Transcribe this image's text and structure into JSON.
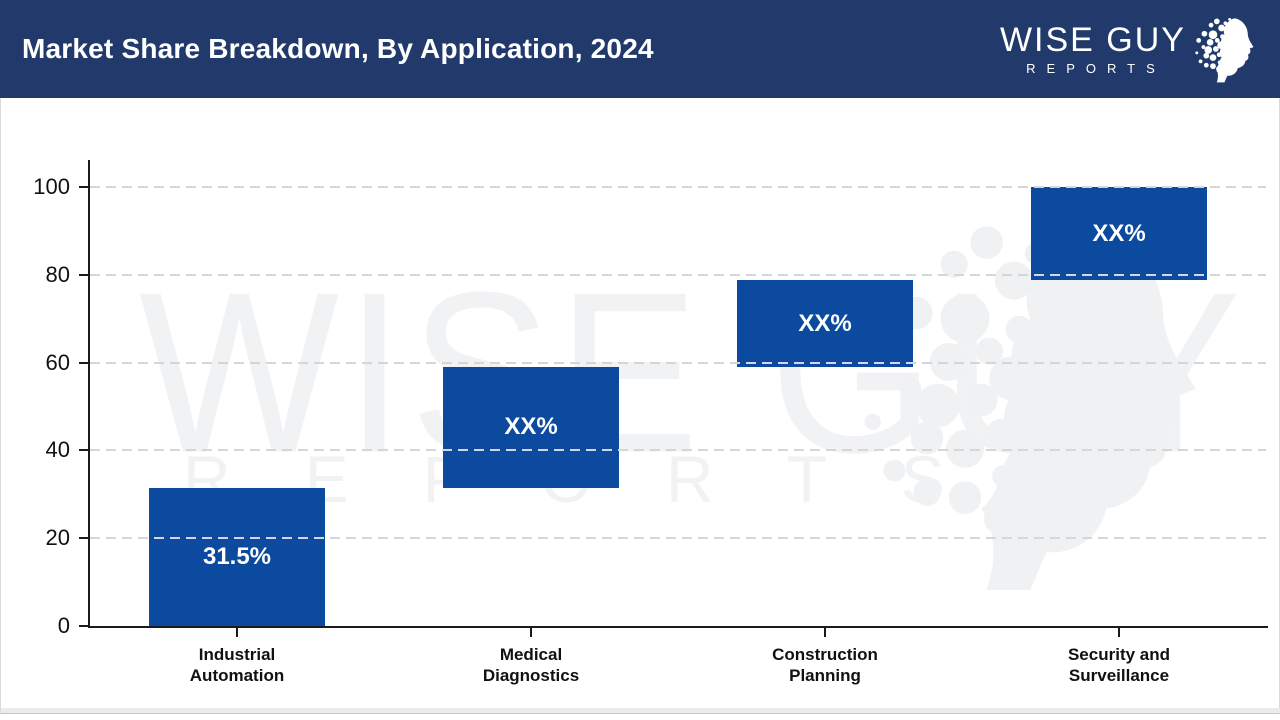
{
  "header": {
    "title": "Market Share Breakdown, By Application, 2024",
    "logo": {
      "line1": "WISE GUY",
      "line2": "REPORTS"
    }
  },
  "watermark": {
    "line1": "WISE GUY",
    "line2": "REPORTS"
  },
  "chart_data": {
    "type": "bar",
    "subtype": "waterfall",
    "title": "Market Share Breakdown, By Application, 2024",
    "categories": [
      "Industrial Automation",
      "Medical Diagnostics",
      "Construction Planning",
      "Security and Surveillance"
    ],
    "category_label_lines": [
      [
        "Industrial",
        "Automation"
      ],
      [
        "Medical",
        "Diagnostics"
      ],
      [
        "Construction",
        "Planning"
      ],
      [
        "Security and",
        "Surveillance"
      ]
    ],
    "segments": [
      {
        "category": "Industrial Automation",
        "start": 0,
        "end": 31.5,
        "value": 31.5,
        "displayed_label": "31.5%"
      },
      {
        "category": "Medical Diagnostics",
        "start": 31.5,
        "end": 59,
        "value": 27.5,
        "displayed_label": "XX%"
      },
      {
        "category": "Construction Planning",
        "start": 59,
        "end": 78.8,
        "value": 19.8,
        "displayed_label": "XX%"
      },
      {
        "category": "Security and Surveillance",
        "start": 78.8,
        "end": 100,
        "value": 21.2,
        "displayed_label": "XX%"
      }
    ],
    "xlabel": "",
    "ylabel": "",
    "ylim": [
      0,
      100
    ],
    "yticks": [
      0,
      20,
      40,
      60,
      80,
      100
    ],
    "grid": "horizontal dashed, drawn above bars",
    "legend": "none",
    "bar_color": "#0b4a9f"
  },
  "colors": {
    "header_bg": "#213a6b",
    "bar": "#0b4a9f",
    "grid": "#d6d6d6",
    "axis": "#1b1b1b",
    "watermark": "#f1f2f4",
    "value_label": "#ffffff"
  }
}
